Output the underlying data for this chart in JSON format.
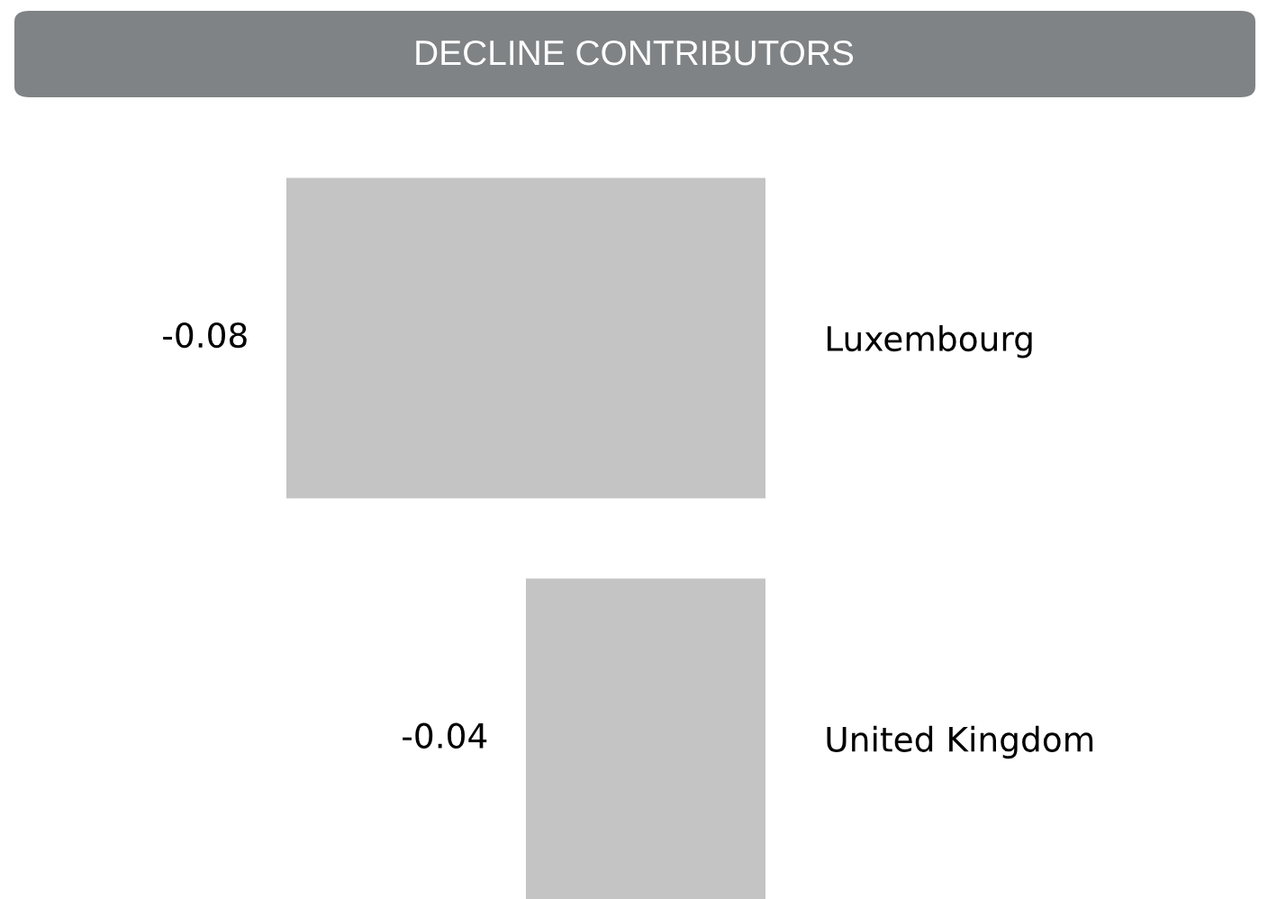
{
  "chart_data": {
    "type": "bar",
    "orientation": "horizontal",
    "title": "DECLINE CONTRIBUTORS",
    "categories": [
      "Luxembourg",
      "United Kingdom"
    ],
    "values": [
      -0.08,
      -0.04
    ],
    "color": "#c4c4c4",
    "data_labels": true,
    "grid": false,
    "legend": false
  }
}
